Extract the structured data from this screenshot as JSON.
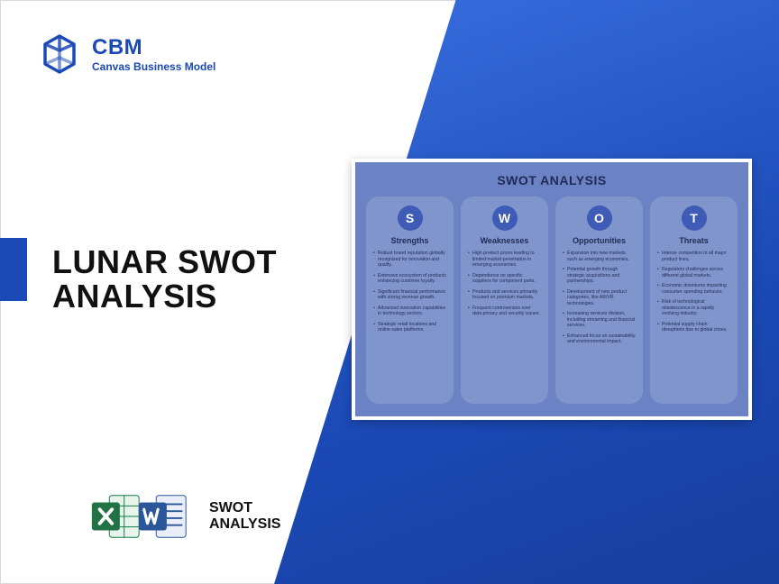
{
  "logo": {
    "brand": "CBM",
    "tagline": "Canvas Business Model"
  },
  "title": {
    "line1": "LUNAR SWOT",
    "line2": "ANALYSIS"
  },
  "tools": {
    "line1": "SWOT",
    "line2": "ANALYSIS"
  },
  "swot": {
    "title": "SWOT ANALYSIS",
    "card_bg": "#6b82c4",
    "col_bg": "#8095cc",
    "circle_bg": "#3e5bb5",
    "text_color": "#1f2a55",
    "columns": [
      {
        "letter": "S",
        "heading": "Strengths",
        "items": [
          "Robust brand reputation globally recognized for innovation and quality.",
          "Extensive ecosystem of products enhancing customer loyalty.",
          "Significant financial performance with strong revenue growth.",
          "Advanced innovation capabilities in technology sectors.",
          "Strategic retail locations and online sales platforms."
        ]
      },
      {
        "letter": "W",
        "heading": "Weaknesses",
        "items": [
          "High product prices leading to limited market penetration in emerging economies.",
          "Dependence on specific suppliers for component parts.",
          "Products and services primarily focused on premium markets.",
          "Frequent controversies over data privacy and security issues."
        ]
      },
      {
        "letter": "O",
        "heading": "Opportunities",
        "items": [
          "Expansion into new markets such as emerging economies.",
          "Potential growth through strategic acquisitions and partnerships.",
          "Development of new product categories, like AR/VR technologies.",
          "Increasing services division, including streaming and financial services.",
          "Enhanced focus on sustainability and environmental impact."
        ]
      },
      {
        "letter": "T",
        "heading": "Threats",
        "items": [
          "Intense competition in all major product lines.",
          "Regulatory challenges across different global markets.",
          "Economic downturns impacting consumer spending behavior.",
          "Risk of technological obsolescence in a rapidly evolving industry.",
          "Potential supply chain disruptions due to global crises."
        ]
      }
    ]
  },
  "colors": {
    "brand_blue": "#1b49b5",
    "excel_green": "#217346",
    "word_blue": "#2b579a"
  }
}
